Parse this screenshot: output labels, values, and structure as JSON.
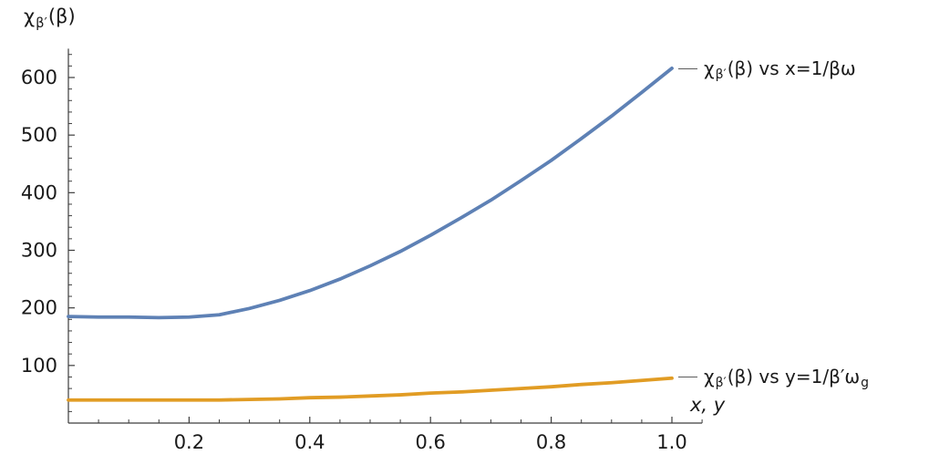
{
  "chart_data": {
    "type": "line",
    "title": "",
    "xlabel": "x, y",
    "ylabel_parts": {
      "chi": "χ",
      "sub": "β′",
      "tail": "(β)"
    },
    "x_tick_labels": [
      "0.2",
      "0.4",
      "0.6",
      "0.8",
      "1.0"
    ],
    "x_tick_values": [
      0.2,
      0.4,
      0.6,
      0.8,
      1.0
    ],
    "y_tick_labels": [
      "100",
      "200",
      "300",
      "400",
      "500",
      "600"
    ],
    "y_tick_values": [
      100,
      200,
      300,
      400,
      500,
      600
    ],
    "xlim": [
      0,
      1.05
    ],
    "ylim": [
      0,
      650
    ],
    "x_minor_step": 0.05,
    "y_minor_step": 20,
    "grid": false,
    "legend_position": "right-of-curve-endpoints",
    "axis_color": "#3d3d3d",
    "series": [
      {
        "name": "chi-beta-vs-x",
        "color": "#5e81b5",
        "label_text": "χβ′(β) vs x=1/βω",
        "label_parts": {
          "chi": "χ",
          "chi_sub": "β′",
          "rest": "(β) vs x=1/βω",
          "rest_sub": ""
        },
        "x": [
          0,
          0.05,
          0.1,
          0.15,
          0.2,
          0.25,
          0.3,
          0.35,
          0.4,
          0.45,
          0.5,
          0.55,
          0.6,
          0.65,
          0.7,
          0.75,
          0.8,
          0.85,
          0.9,
          0.95,
          1.0
        ],
        "y": [
          185,
          184,
          184,
          183,
          184,
          188,
          199,
          213,
          230,
          250,
          273,
          298,
          326,
          356,
          387,
          421,
          456,
          494,
          533,
          574,
          616
        ]
      },
      {
        "name": "chi-beta-vs-y",
        "color": "#e19c24",
        "label_text": "χβ′(β) vs y=1/β′ωg",
        "label_parts": {
          "chi": "χ",
          "chi_sub": "β′",
          "rest": "(β) vs y=1/β′ω",
          "rest_sub": "g"
        },
        "x": [
          0,
          0.05,
          0.1,
          0.15,
          0.2,
          0.25,
          0.3,
          0.35,
          0.4,
          0.45,
          0.5,
          0.55,
          0.6,
          0.65,
          0.7,
          0.75,
          0.8,
          0.85,
          0.9,
          0.95,
          1.0
        ],
        "y": [
          40,
          40,
          40,
          40,
          40,
          40,
          41,
          42,
          44,
          45,
          47,
          49,
          52,
          54,
          57,
          60,
          63,
          67,
          70,
          74,
          78
        ]
      }
    ]
  }
}
